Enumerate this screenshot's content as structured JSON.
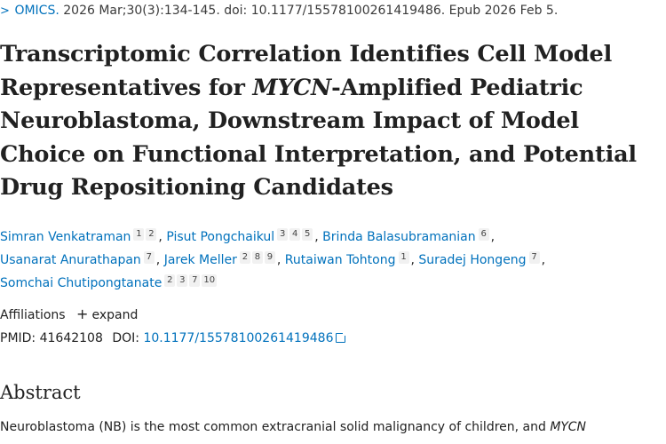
{
  "citation": {
    "journal": "OMICS.",
    "details": "2026 Mar;30(3):134-145. doi: 10.1177/15578100261419486. Epub 2026 Feb 5."
  },
  "title": {
    "part1": "Transcriptomic Correlation Identifies Cell Model Representatives for ",
    "gene": "MYCN",
    "part2": "-Amplified Pediatric Neuroblastoma, Downstream Impact of Model Choice on Functional Interpretation, and Potential Drug Repositioning Candidates"
  },
  "authors": [
    {
      "name": "Simran Venkatraman",
      "affs": [
        "1",
        "2"
      ]
    },
    {
      "name": "Pisut Pongchaikul",
      "affs": [
        "3",
        "4",
        "5"
      ]
    },
    {
      "name": "Brinda Balasubramanian",
      "affs": [
        "6"
      ]
    },
    {
      "name": "Usanarat Anurathapan",
      "affs": [
        "7"
      ]
    },
    {
      "name": "Jarek Meller",
      "affs": [
        "2",
        "8",
        "9"
      ]
    },
    {
      "name": "Rutaiwan Tohtong",
      "affs": [
        "1"
      ]
    },
    {
      "name": "Suradej Hongeng",
      "affs": [
        "7"
      ]
    },
    {
      "name": "Somchai Chutipongtanate",
      "affs": [
        "2",
        "3",
        "7",
        "10"
      ]
    }
  ],
  "affiliations": {
    "label": "Affiliations",
    "expand_label": "expand"
  },
  "ids": {
    "pmid_label": "PMID:",
    "pmid": "41642108",
    "doi_label": "DOI:",
    "doi": "10.1177/15578100261419486"
  },
  "abstract": {
    "heading": "Abstract",
    "text_start": "Neuroblastoma (NB) is the most common extracranial solid malignancy of children, and ",
    "text_gene": "MYCN"
  }
}
